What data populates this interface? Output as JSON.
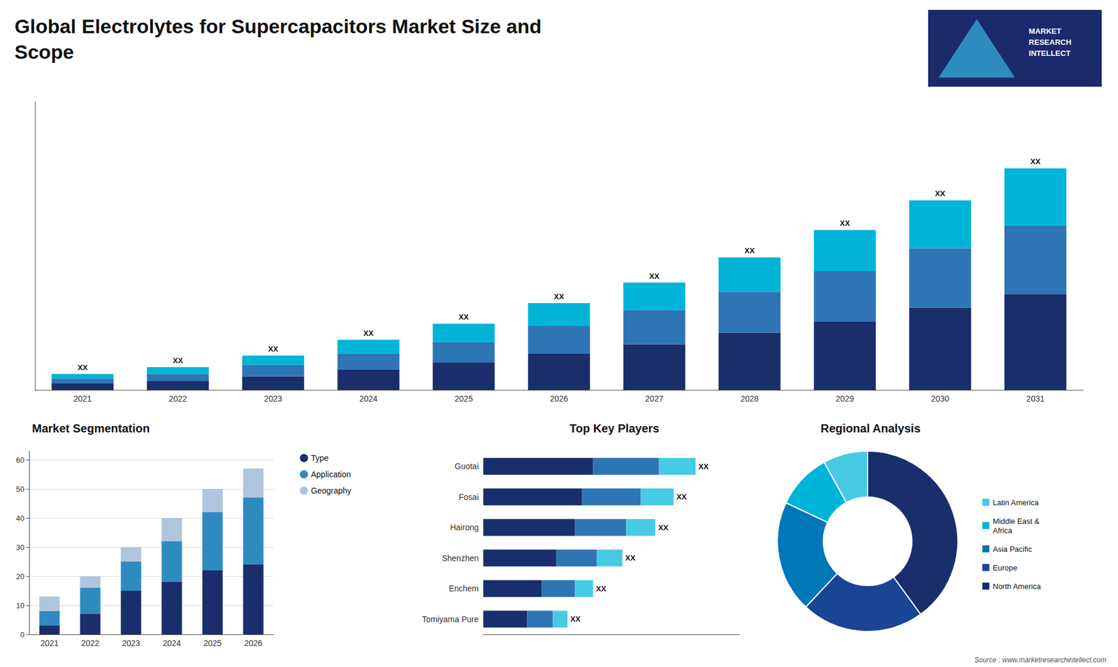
{
  "chart_data": [
    {
      "type": "bar",
      "title": "Global Electrolytes for Supercapacitors Market Size and\nScope",
      "categories": [
        "2021",
        "2022",
        "2023",
        "2024",
        "2025",
        "2026",
        "2027",
        "2028",
        "2029",
        "2030",
        "2031"
      ],
      "series": [
        {
          "color": "#1a2e6c",
          "values": [
            3,
            4,
            6,
            9,
            12,
            16,
            20,
            25,
            30,
            36,
            42
          ]
        },
        {
          "color": "#2e75b6",
          "values": [
            2,
            3,
            5,
            7,
            9,
            12,
            15,
            18,
            22,
            26,
            30
          ]
        },
        {
          "color": "#00b4d8",
          "values": [
            2,
            3,
            4,
            6,
            8,
            10,
            12,
            15,
            18,
            21,
            25
          ],
          "value_labels": [
            "XX",
            "XX",
            "XX",
            "XX",
            "XX",
            "XX",
            "XX",
            "XX",
            "XX",
            "XX",
            "XX"
          ]
        }
      ],
      "stacked": true,
      "data_labels": true,
      "ylim": [
        0,
        126.1
      ],
      "grid": false,
      "tick_labels": "x",
      "annotations": [
        "MARKET\nRESEARCH\nINTELLECT"
      ]
    },
    {
      "type": "bar",
      "title": "Market Segmentation",
      "categories": [
        "2021",
        "2022",
        "2023",
        "2024",
        "2025",
        "2026"
      ],
      "series": [
        {
          "name": "Type",
          "color": "#1a2e6c",
          "values": [
            3,
            7,
            15,
            18,
            22,
            24
          ]
        },
        {
          "name": "Application",
          "color": "#2e8bc0",
          "values": [
            5,
            9,
            10,
            14,
            20,
            23
          ]
        },
        {
          "name": "Geography",
          "color": "#b0c4de",
          "values": [
            5,
            4,
            5,
            8,
            8,
            10
          ]
        }
      ],
      "stacked": true,
      "ylim": [
        0,
        63
      ],
      "yticks": [
        0,
        10,
        20,
        30,
        40,
        50,
        60
      ],
      "grid": true,
      "legend": "right",
      "marker": "circle"
    },
    {
      "type": "bar",
      "orientation": "horizontal",
      "title": "Top Key Players",
      "categories": [
        "Guotai",
        "Fosai",
        "Hairong",
        "Shenzhen",
        "Enchem",
        "Tomiyama Pure"
      ],
      "series": [
        {
          "color": "#1a2e6c",
          "values": [
            30,
            27,
            25,
            20,
            16,
            12
          ]
        },
        {
          "color": "#2e75b6",
          "values": [
            18,
            16,
            14,
            11,
            9,
            7
          ]
        },
        {
          "color": "#48cae4",
          "values": [
            10,
            9,
            8,
            7,
            5,
            4
          ],
          "value_labels": [
            "XX",
            "XX",
            "XX",
            "XX",
            "XX",
            "XX"
          ]
        }
      ],
      "stacked": true,
      "data_labels": true,
      "xlim": [
        0,
        70
      ],
      "grid": false,
      "tick_labels": "y"
    },
    {
      "type": "pie",
      "title": "Regional Analysis",
      "categories": [
        "Latin America",
        "Middle East &\nAfrica",
        "Asia Pacific",
        "Europe",
        "North America"
      ],
      "values": [
        8,
        10,
        20,
        22,
        40
      ],
      "colors": [
        "#48cae4",
        "#00b4d8",
        "#0077b6",
        "#1a4494",
        "#1a2e6c"
      ],
      "legend": "right",
      "annotations": [
        "Source : www.marketresearchintellect.com"
      ]
    }
  ]
}
